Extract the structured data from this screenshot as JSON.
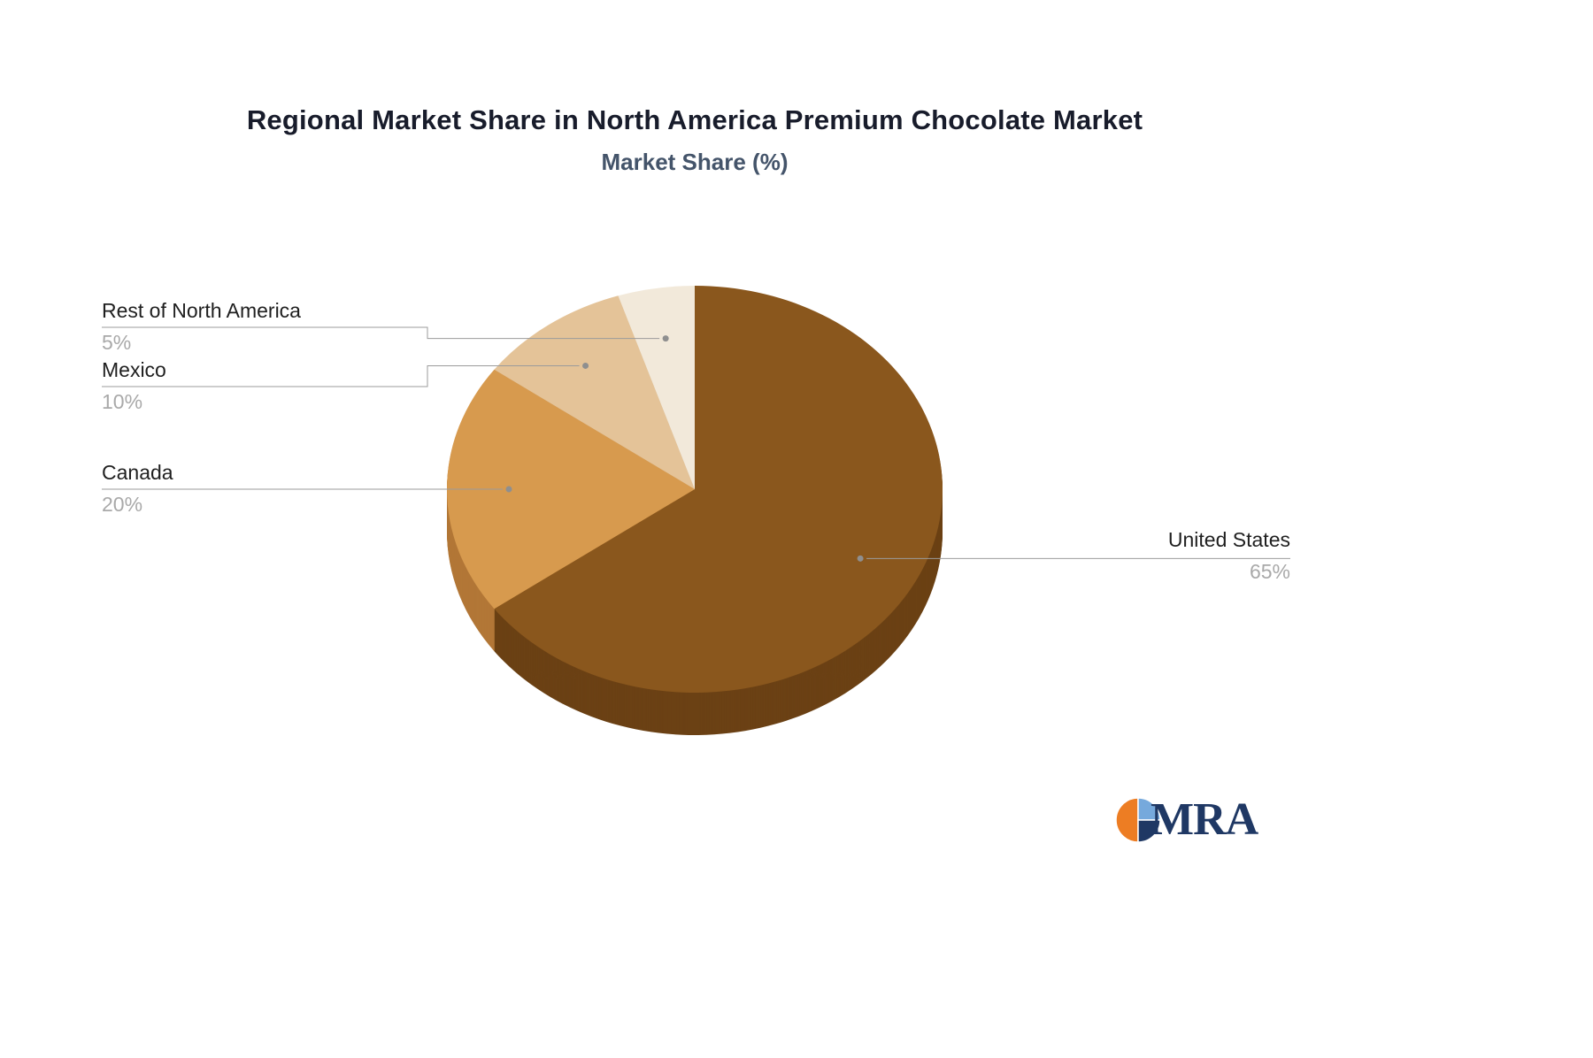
{
  "title": "Regional Market Share in North America Premium Chocolate Market",
  "subtitle": "Market Share (%)",
  "chart_data": {
    "type": "pie",
    "style": "3d",
    "title": "Regional Market Share in North America Premium Chocolate Market",
    "subtitle": "Market Share (%)",
    "unit": "%",
    "categories": [
      "United States",
      "Canada",
      "Mexico",
      "Rest of North America"
    ],
    "values": [
      65,
      20,
      10,
      5
    ],
    "colors": [
      "#8a571d",
      "#d79a4e",
      "#e4c398",
      "#f2e9da"
    ],
    "depth_colors": [
      "#6b4114",
      "#b27737",
      "#c7a276",
      "#d6c8b2"
    ],
    "start_angle_deg": -90,
    "direction": "clockwise",
    "legend": "none",
    "callouts": {
      "rest": {
        "name": "Rest of North America",
        "value": "5%"
      },
      "mexico": {
        "name": "Mexico",
        "value": "10%"
      },
      "canada": {
        "name": "Canada",
        "value": "20%"
      },
      "united_states": {
        "name": "United States",
        "value": "65%"
      }
    }
  },
  "logo": {
    "text": "MRA"
  }
}
